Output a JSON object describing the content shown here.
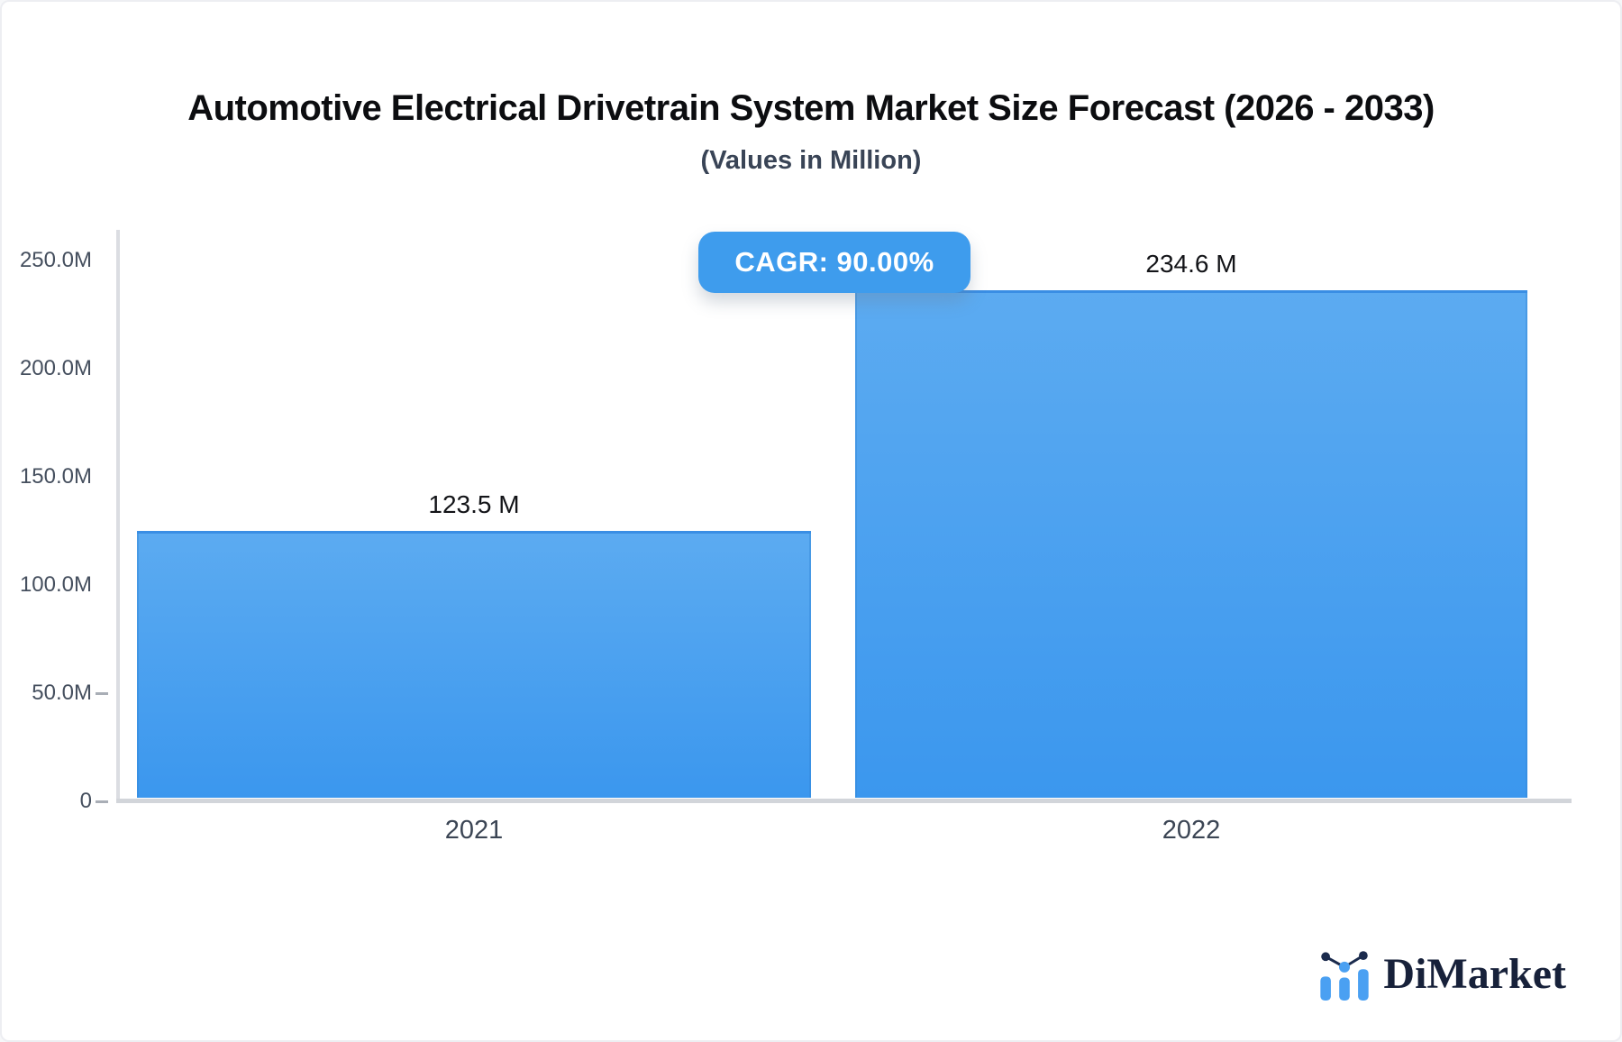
{
  "header": {
    "title": "Automotive Electrical Drivetrain System Market Size Forecast (2026 - 2033)",
    "subtitle": "(Values in Million)"
  },
  "cagr_badge": {
    "label": "CAGR: 90.00%",
    "color": "#3e9ced"
  },
  "chart_data": {
    "type": "bar",
    "title": "Automotive Electrical Drivetrain System Market Size Forecast (2026 - 2033)",
    "subtitle": "(Values in Million)",
    "categories": [
      "2021",
      "2022"
    ],
    "values": [
      123.5,
      234.6
    ],
    "value_labels": [
      "123.5 M",
      "234.6 M"
    ],
    "unit": "Million",
    "ylim": [
      0,
      250
    ],
    "yticks": [
      "250.0M",
      "200.0M",
      "150.0M",
      "100.0M",
      "50.0M",
      "0"
    ],
    "grid": "off",
    "legend": "none",
    "bar_color_top": "#5cabf1",
    "bar_color_bottom": "#3b97ee",
    "bar_edge_color": "#3a8ee4",
    "axis_color": "#dbdde2",
    "baseline_color": "#d2d5da"
  },
  "branding": {
    "name": "DiMarket",
    "icon": "bar-line-chart-logo-icon",
    "logo_blue": "#4aa0f2",
    "logo_navy": "#1b2b4d"
  }
}
